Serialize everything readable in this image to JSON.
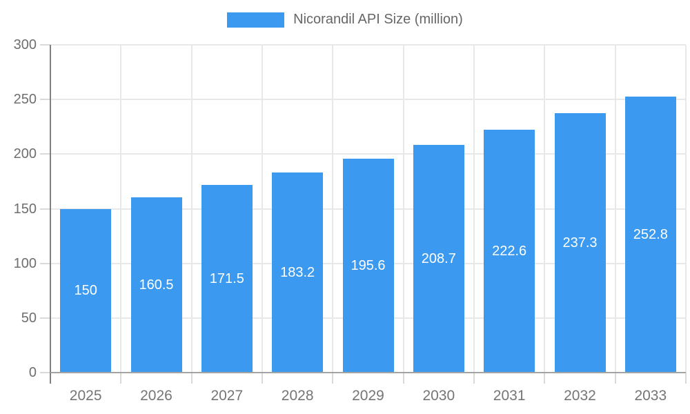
{
  "legend": {
    "label": "Nicorandil API Size (million)",
    "swatch_color": "#3B9AF0"
  },
  "chart_data": {
    "type": "bar",
    "title": "",
    "xlabel": "",
    "ylabel": "",
    "categories": [
      "2025",
      "2026",
      "2027",
      "2028",
      "2029",
      "2030",
      "2031",
      "2032",
      "2033"
    ],
    "series": [
      {
        "name": "Nicorandil API Size (million)",
        "values": [
          150,
          160.5,
          171.5,
          183.2,
          195.6,
          208.7,
          222.6,
          237.3,
          252.8
        ]
      }
    ],
    "value_labels": [
      "150",
      "160.5",
      "171.5",
      "183.2",
      "195.6",
      "208.7",
      "222.6",
      "237.3",
      "252.8"
    ],
    "ylim": [
      0,
      300
    ],
    "ytick_step": 50,
    "ytick_labels": [
      "0",
      "50",
      "100",
      "150",
      "200",
      "250",
      "300"
    ],
    "grid": true,
    "legend_position": "top"
  },
  "colors": {
    "bar": "#3B9AF0",
    "grid": "#e8e8e8",
    "axis_y": "#7f7f7f",
    "axis_x": "#a3a3a3",
    "tick": "#d9d9d9",
    "y_label": "#6e6e6e",
    "x_label": "#757575",
    "value_label": "#ffffff",
    "legend_text": "#666666"
  }
}
